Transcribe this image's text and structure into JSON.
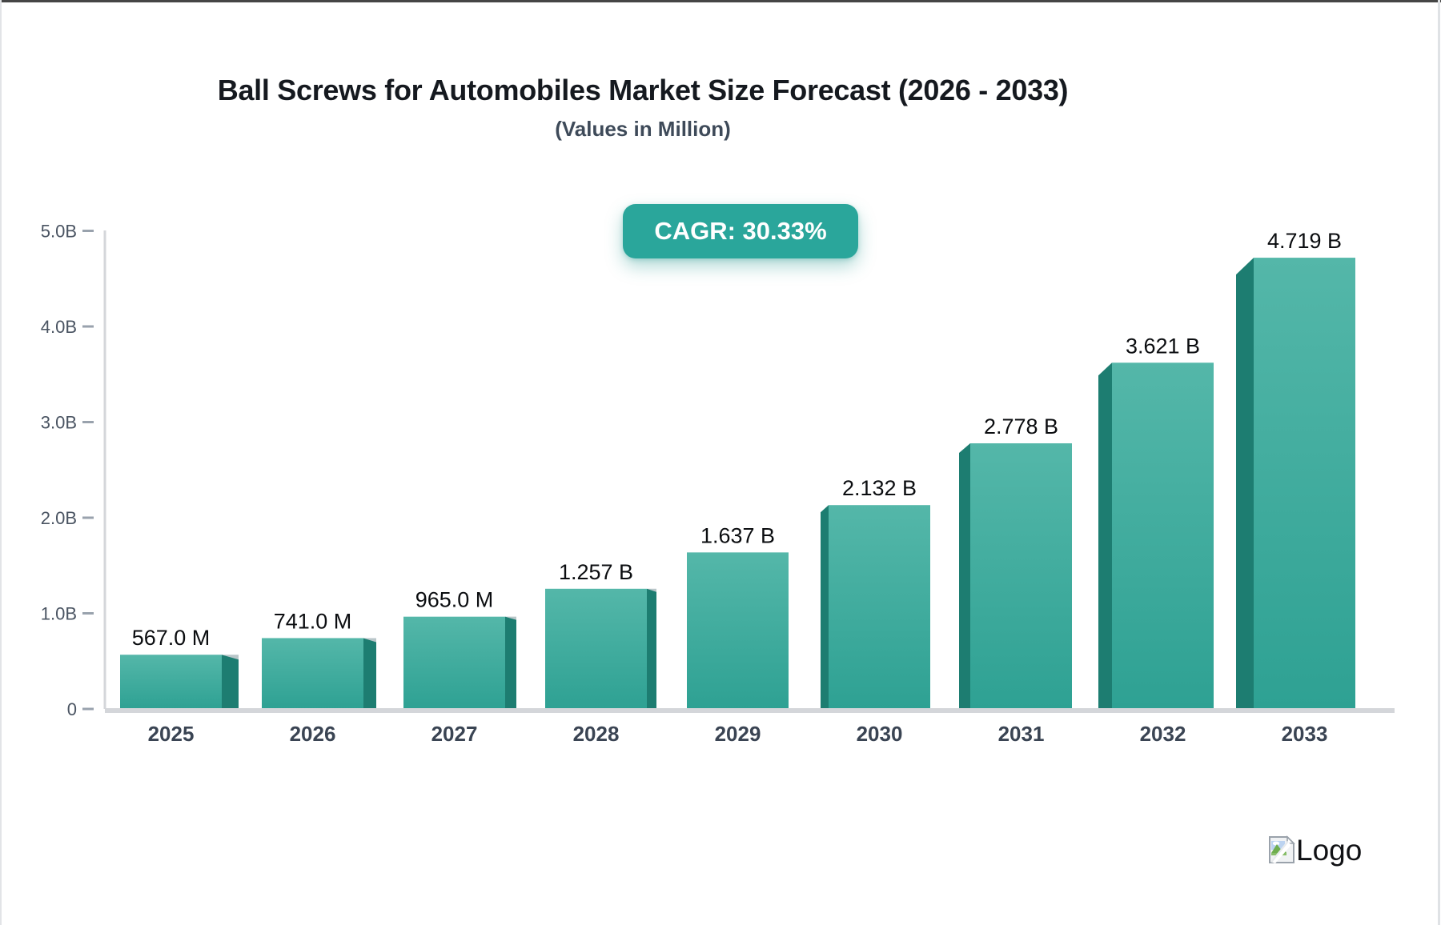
{
  "header": {
    "title": "Ball Screws for Automobiles Market Size Forecast (2026 - 2033)",
    "subtitle": "(Values in Million)"
  },
  "badge": {
    "label": "CAGR: 30.33%"
  },
  "chart_data": {
    "type": "bar",
    "style": "3d-perspective-columns",
    "title": "Ball Screws for Automobiles Market Size Forecast (2026 - 2033)",
    "subtitle": "(Values in Million)",
    "cagr": "30.33%",
    "categories": [
      "2025",
      "2026",
      "2027",
      "2028",
      "2029",
      "2030",
      "2031",
      "2032",
      "2033"
    ],
    "values_billion": [
      0.567,
      0.741,
      0.965,
      1.257,
      1.637,
      2.132,
      2.778,
      3.621,
      4.719
    ],
    "value_labels": [
      "567.0 M",
      "741.0 M",
      "965.0 M",
      "1.257 B",
      "1.637 B",
      "2.132 B",
      "2.778 B",
      "3.621 B",
      "4.719 B"
    ],
    "y_ticks": [
      {
        "label": "0",
        "value": 0
      },
      {
        "label": "1.0B",
        "value": 1
      },
      {
        "label": "2.0B",
        "value": 2
      },
      {
        "label": "3.0B",
        "value": 3
      },
      {
        "label": "4.0B",
        "value": 4
      },
      {
        "label": "5.0B",
        "value": 5
      }
    ],
    "ylim": [
      0,
      5
    ],
    "xlabel": "",
    "ylabel": "",
    "grid": false,
    "legend": false
  },
  "logo": {
    "alt_text": "Logo"
  },
  "colors": {
    "bar_face_top": "#54b7a9",
    "bar_face_bottom": "#2ea193",
    "bar_side": "#1d7d71",
    "bar_top_sliver": "#b9c6c9",
    "badge_bg": "#2aa69b",
    "badge_text": "#ffffff",
    "axis_line": "#d4d6da",
    "tick_dash": "#99a2ad",
    "tick_text": "#4a5462",
    "year_text": "#3a4453",
    "value_text": "#0b0d10",
    "title_text": "#15191f",
    "subtitle_text": "#3e4a59"
  }
}
